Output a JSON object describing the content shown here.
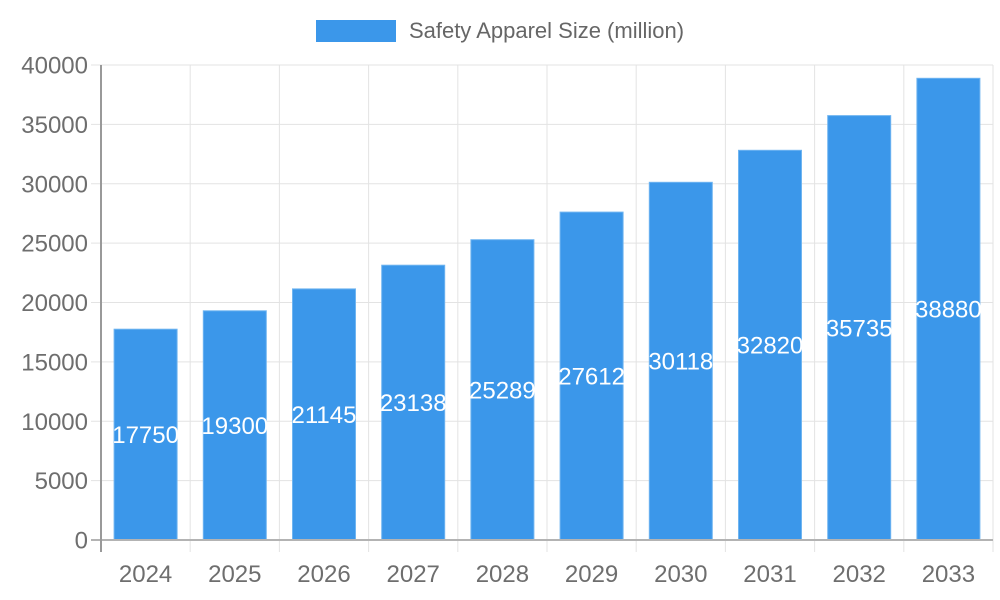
{
  "chart_data": {
    "type": "bar",
    "title": "Safety Apparel Size (million)",
    "legend_label": "Safety Apparel Size (million)",
    "legend_position": "top",
    "categories": [
      "2024",
      "2025",
      "2026",
      "2027",
      "2028",
      "2029",
      "2030",
      "2031",
      "2032",
      "2033"
    ],
    "series": [
      {
        "name": "Safety Apparel Size (million)",
        "values": [
          17750,
          19300,
          21145,
          23138,
          25289,
          27612,
          30118,
          32820,
          35735,
          38880
        ]
      }
    ],
    "value_labels": [
      "17750",
      "19300",
      "21145",
      "23138",
      "25289",
      "27612",
      "30118",
      "32820",
      "35735",
      "38880"
    ],
    "xlabel": "",
    "ylabel": "",
    "ylim": [
      0,
      40000
    ],
    "yticks": [
      0,
      5000,
      10000,
      15000,
      20000,
      25000,
      30000,
      35000,
      40000
    ],
    "ytick_labels": [
      "0",
      "5000",
      "10000",
      "15000",
      "20000",
      "25000",
      "30000",
      "35000",
      "40000"
    ],
    "grid": true,
    "colors": {
      "bar_fill": "#3b97ea",
      "bar_border": "#6fb5f1",
      "grid_line": "#e3e3e3",
      "x_axis_line": "#b3b3b3",
      "y_axis_line": "#999999",
      "tick_text": "#6e6e6e",
      "legend_text": "#666666",
      "value_label_text": "#ffffff",
      "background": "#ffffff"
    }
  }
}
